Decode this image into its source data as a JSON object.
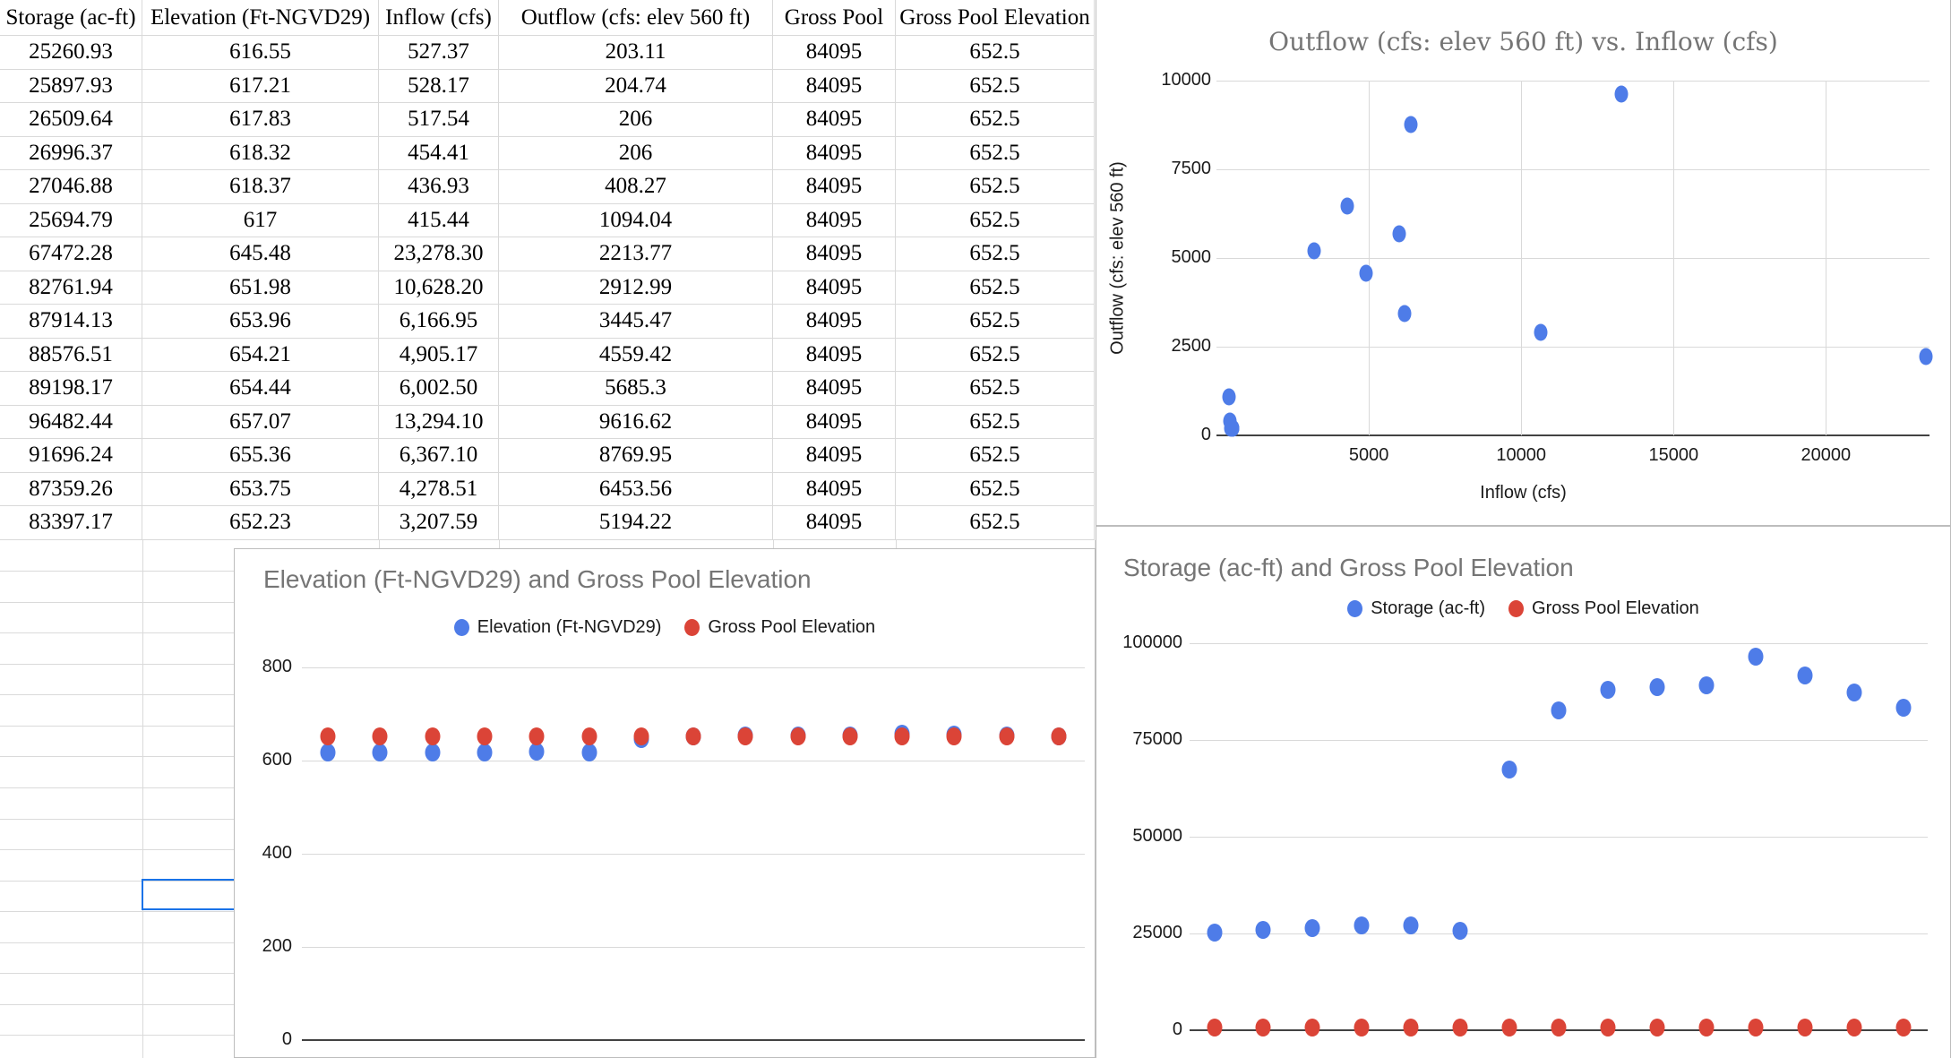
{
  "spreadsheet": {
    "columns": [
      "Storage (ac-ft)",
      "Elevation (Ft-NGVD29)",
      "Inflow (cfs)",
      "Outflow (cfs: elev 560 ft)",
      "Gross Pool",
      "Gross Pool Elevation"
    ],
    "rows": [
      [
        "25260.93",
        "616.55",
        "527.37",
        "203.11",
        "84095",
        "652.5"
      ],
      [
        "25897.93",
        "617.21",
        "528.17",
        "204.74",
        "84095",
        "652.5"
      ],
      [
        "26509.64",
        "617.83",
        "517.54",
        "206",
        "84095",
        "652.5"
      ],
      [
        "26996.37",
        "618.32",
        "454.41",
        "206",
        "84095",
        "652.5"
      ],
      [
        "27046.88",
        "618.37",
        "436.93",
        "408.27",
        "84095",
        "652.5"
      ],
      [
        "25694.79",
        "617",
        "415.44",
        "1094.04",
        "84095",
        "652.5"
      ],
      [
        "67472.28",
        "645.48",
        "23,278.30",
        "2213.77",
        "84095",
        "652.5"
      ],
      [
        "82761.94",
        "651.98",
        "10,628.20",
        "2912.99",
        "84095",
        "652.5"
      ],
      [
        "87914.13",
        "653.96",
        "6,166.95",
        "3445.47",
        "84095",
        "652.5"
      ],
      [
        "88576.51",
        "654.21",
        "4,905.17",
        "4559.42",
        "84095",
        "652.5"
      ],
      [
        "89198.17",
        "654.44",
        "6,002.50",
        "5685.3",
        "84095",
        "652.5"
      ],
      [
        "96482.44",
        "657.07",
        "13,294.10",
        "9616.62",
        "84095",
        "652.5"
      ],
      [
        "91696.24",
        "655.36",
        "6,367.10",
        "8769.95",
        "84095",
        "652.5"
      ],
      [
        "87359.26",
        "653.75",
        "4,278.51",
        "6453.56",
        "84095",
        "652.5"
      ],
      [
        "83397.17",
        "652.23",
        "3,207.59",
        "5194.22",
        "84095",
        "652.5"
      ]
    ]
  },
  "chart_data": [
    {
      "id": "outflow-vs-inflow",
      "type": "scatter",
      "title": "Outflow (cfs: elev 560 ft) vs. Inflow (cfs)",
      "xlabel": "Inflow (cfs)",
      "ylabel": "Outflow (cfs: elev 560 ft)",
      "xlim": [
        0,
        23400
      ],
      "ylim": [
        0,
        10000
      ],
      "xticks": [
        5000,
        10000,
        15000,
        20000
      ],
      "yticks": [
        0,
        2500,
        5000,
        7500,
        10000
      ],
      "grid": true,
      "legend_position": "none",
      "series": [
        {
          "name": "Outflow (cfs: elev 560 ft)",
          "color": "#4e7ce8",
          "x": [
            527.37,
            528.17,
            517.54,
            454.41,
            436.93,
            415.44,
            23278.3,
            10628.2,
            6166.95,
            4905.17,
            6002.5,
            13294.1,
            6367.1,
            4278.51,
            3207.59
          ],
          "y": [
            203.11,
            204.74,
            206,
            206,
            408.27,
            1094.04,
            2213.77,
            2912.99,
            3445.47,
            4559.42,
            5685.3,
            9616.62,
            8769.95,
            6453.56,
            5194.22
          ]
        }
      ]
    },
    {
      "id": "elevation-and-gross-pool-elevation",
      "type": "scatter",
      "title": "Elevation (Ft-NGVD29) and Gross Pool Elevation",
      "xlabel": "",
      "ylabel": "",
      "ylim": [
        0,
        800
      ],
      "yticks": [
        0,
        200,
        400,
        600,
        800
      ],
      "grid": true,
      "legend_position": "top",
      "series": [
        {
          "name": "Elevation (Ft-NGVD29)",
          "color": "#4e7ce8",
          "values": [
            616.55,
            617.21,
            617.83,
            618.32,
            618.37,
            617,
            645.48,
            651.98,
            653.96,
            654.21,
            654.44,
            657.07,
            655.36,
            653.75,
            652.23
          ]
        },
        {
          "name": "Gross Pool Elevation",
          "color": "#db4437",
          "values": [
            652.5,
            652.5,
            652.5,
            652.5,
            652.5,
            652.5,
            652.5,
            652.5,
            652.5,
            652.5,
            652.5,
            652.5,
            652.5,
            652.5,
            652.5
          ]
        }
      ]
    },
    {
      "id": "storage-and-gross-pool-elevation",
      "type": "scatter",
      "title": "Storage (ac-ft) and Gross Pool Elevation",
      "xlabel": "",
      "ylabel": "",
      "ylim": [
        0,
        100000
      ],
      "yticks": [
        0,
        25000,
        50000,
        75000,
        100000
      ],
      "grid": true,
      "legend_position": "top",
      "series": [
        {
          "name": "Storage (ac-ft)",
          "color": "#4e7ce8",
          "values": [
            25260.93,
            25897.93,
            26509.64,
            26996.37,
            27046.88,
            25694.79,
            67472.28,
            82761.94,
            87914.13,
            88576.51,
            89198.17,
            96482.44,
            91696.24,
            87359.26,
            83397.17
          ]
        },
        {
          "name": "Gross Pool Elevation",
          "color": "#db4437",
          "values": [
            652.5,
            652.5,
            652.5,
            652.5,
            652.5,
            652.5,
            652.5,
            652.5,
            652.5,
            652.5,
            652.5,
            652.5,
            652.5,
            652.5,
            652.5
          ]
        }
      ]
    }
  ],
  "colors": {
    "series_blue": "#4e7ce8",
    "series_red": "#db4437",
    "selection_border": "#1a73e8",
    "chart_title_gray": "#757575",
    "grid_line": "#d9d9d9"
  }
}
